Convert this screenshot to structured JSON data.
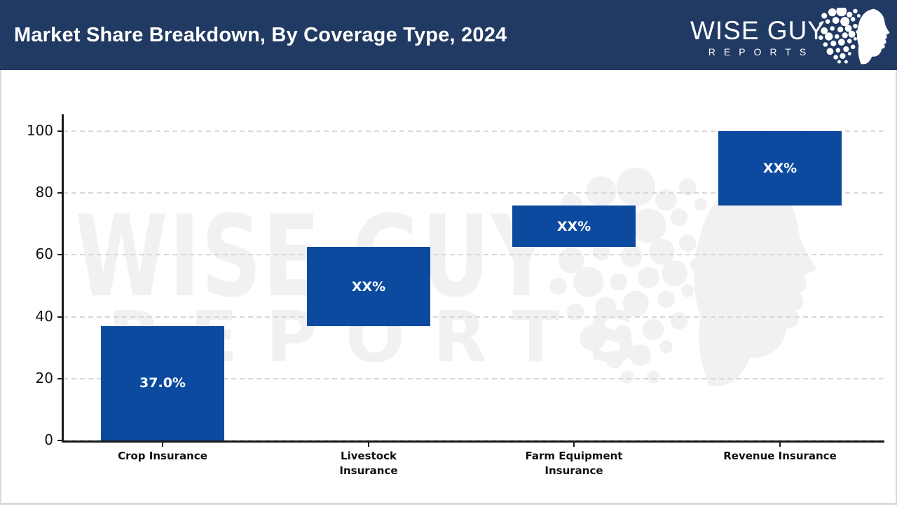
{
  "header": {
    "title": "Market Share Breakdown, By Coverage Type, 2024",
    "bg_color": "#213a63",
    "logo": {
      "name": "WISE GUY",
      "subtitle": "REPORTS",
      "icon": "dotted-face-profile"
    }
  },
  "watermark": {
    "line1": "WISE GUY",
    "line2": "REPORTS",
    "icon": "dotted-face-profile",
    "color": "#f1f1f3"
  },
  "chart_data": {
    "type": "bar",
    "variant": "waterfall-breakdown",
    "title": "Market Share Breakdown, By Coverage Type, 2024",
    "categories": [
      "Crop Insurance",
      "Livestock Insurance",
      "Farm Equipment Insurance",
      "Revenue Insurance"
    ],
    "categories_lines": [
      [
        "Crop Insurance"
      ],
      [
        "Livestock",
        "Insurance"
      ],
      [
        "Farm Equipment",
        "Insurance"
      ],
      [
        "Revenue Insurance"
      ]
    ],
    "segments": [
      {
        "category": "Crop Insurance",
        "start": 0,
        "end": 37,
        "label": "37.0%"
      },
      {
        "category": "Livestock Insurance",
        "start": 37,
        "end": 62.5,
        "label": "XX%"
      },
      {
        "category": "Farm Equipment Insurance",
        "start": 62.5,
        "end": 76,
        "label": "XX%"
      },
      {
        "category": "Revenue Insurance",
        "start": 76,
        "end": 100,
        "label": "XX%"
      }
    ],
    "xlabel": "",
    "ylabel": "",
    "ylim": [
      0,
      100
    ],
    "yticks": [
      0,
      20,
      40,
      60,
      80,
      100
    ],
    "grid": "horizontal-dashed",
    "legend": "none",
    "bar_color": "#0b4a9e",
    "value_label_color": "#ffffff",
    "axis_color": "#1a1a1a"
  }
}
